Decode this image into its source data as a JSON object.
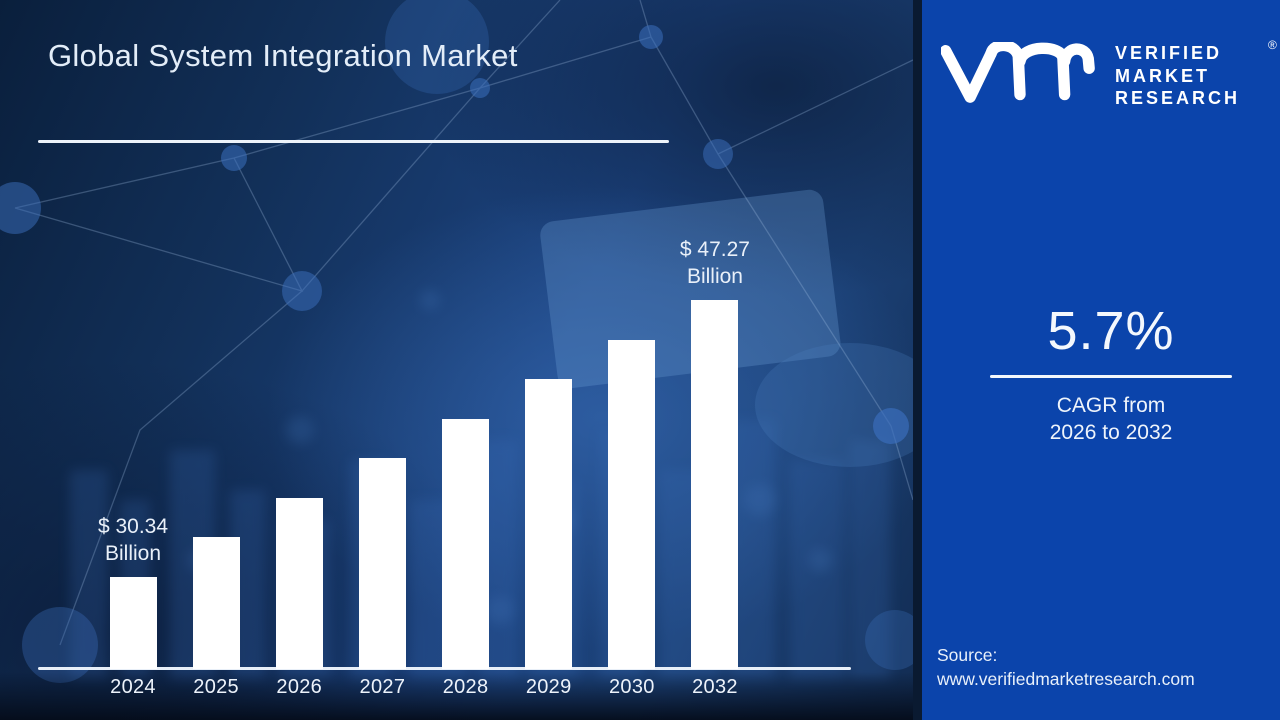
{
  "header": {
    "title": "Global System Integration Market"
  },
  "chart_data": {
    "type": "bar",
    "title": "Global System Integration Market",
    "unit": "USD Billion",
    "categories": [
      "2024",
      "2025",
      "2026",
      "2027",
      "2028",
      "2029",
      "2030",
      "2032"
    ],
    "values": [
      30.34,
      32.07,
      33.9,
      35.83,
      37.87,
      40.03,
      42.31,
      47.27
    ],
    "bar_color": "#ffffff",
    "axis_color": "#e8eff8",
    "annotations": [
      {
        "index": 0,
        "category": "2024",
        "lines": [
          "$ 30.34",
          "Billion"
        ]
      },
      {
        "index": 7,
        "category": "2032",
        "lines": [
          "$ 47.27",
          "Billion"
        ]
      }
    ],
    "legend": null,
    "grid": false
  },
  "sidebar": {
    "background_color": "#0b44ab",
    "brand": {
      "logo": "vmr-monogram",
      "lines": [
        "VERIFIED",
        "MARKET",
        "RESEARCH"
      ],
      "registered": "®"
    },
    "cagr": {
      "value": "5.7%",
      "caption_line1": "CAGR from",
      "caption_line2": "2026 to 2032"
    },
    "source": {
      "label": "Source:",
      "url": "www.verifiedmarketresearch.com"
    }
  }
}
